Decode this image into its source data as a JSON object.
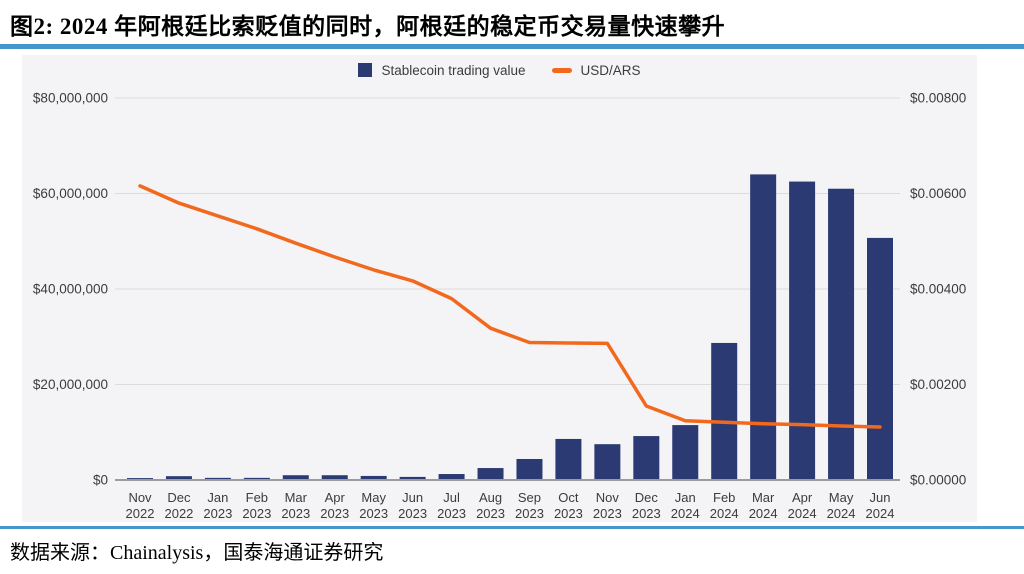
{
  "title": "图2:  2024 年阿根廷比索贬值的同时，阿根廷的稳定币交易量快速攀升",
  "footer": "数据来源：Chainalysis，国泰海通证券研究",
  "legend": {
    "bar_label": "Stablecoin trading value",
    "line_label": "USD/ARS"
  },
  "colors": {
    "bar": "#2b3a73",
    "line": "#f2691e",
    "chart_bg": "#f4f4f6",
    "grid": "#dcdcdc",
    "axis": "#9b9b9b",
    "label": "#3c3c3c",
    "rule_blue": "#4596cb"
  },
  "chart_data": {
    "type": "bar+line",
    "title": "",
    "categories": [
      "Nov 2022",
      "Dec 2022",
      "Jan 2023",
      "Feb 2023",
      "Mar 2023",
      "Apr 2023",
      "May 2023",
      "Jun 2023",
      "Jul 2023",
      "Aug 2023",
      "Sep 2023",
      "Oct 2023",
      "Nov 2023",
      "Dec 2023",
      "Jan 2024",
      "Feb 2024",
      "Mar 2024",
      "Apr 2024",
      "May 2024",
      "Jun 2024"
    ],
    "series": [
      {
        "name": "Stablecoin trading value",
        "type": "bar",
        "axis": "left",
        "values": [
          400000,
          800000,
          450000,
          450000,
          1000000,
          1000000,
          850000,
          650000,
          1250000,
          2500000,
          4400000,
          8600000,
          7500000,
          9200000,
          11500000,
          28700000,
          64000000,
          62500000,
          61000000,
          50700000
        ]
      },
      {
        "name": "USD/ARS",
        "type": "line",
        "axis": "right",
        "values": [
          0.00616,
          0.0058,
          0.00553,
          0.00526,
          0.00496,
          0.00467,
          0.0044,
          0.00417,
          0.0038,
          0.00318,
          0.00288,
          0.00287,
          0.00286,
          0.00155,
          0.00124,
          0.00121,
          0.00118,
          0.00116,
          0.00113,
          0.00111
        ]
      }
    ],
    "left_axis": {
      "ticks": [
        "$0",
        "$20,000,000",
        "$40,000,000",
        "$60,000,000",
        "$80,000,000"
      ],
      "min": 0,
      "max": 80000000
    },
    "right_axis": {
      "ticks": [
        "$0.00000",
        "$0.00200",
        "$0.00400",
        "$0.00600",
        "$0.00800"
      ],
      "min": 0,
      "max": 0.008
    },
    "grid": true,
    "legend_position": "top-center"
  }
}
